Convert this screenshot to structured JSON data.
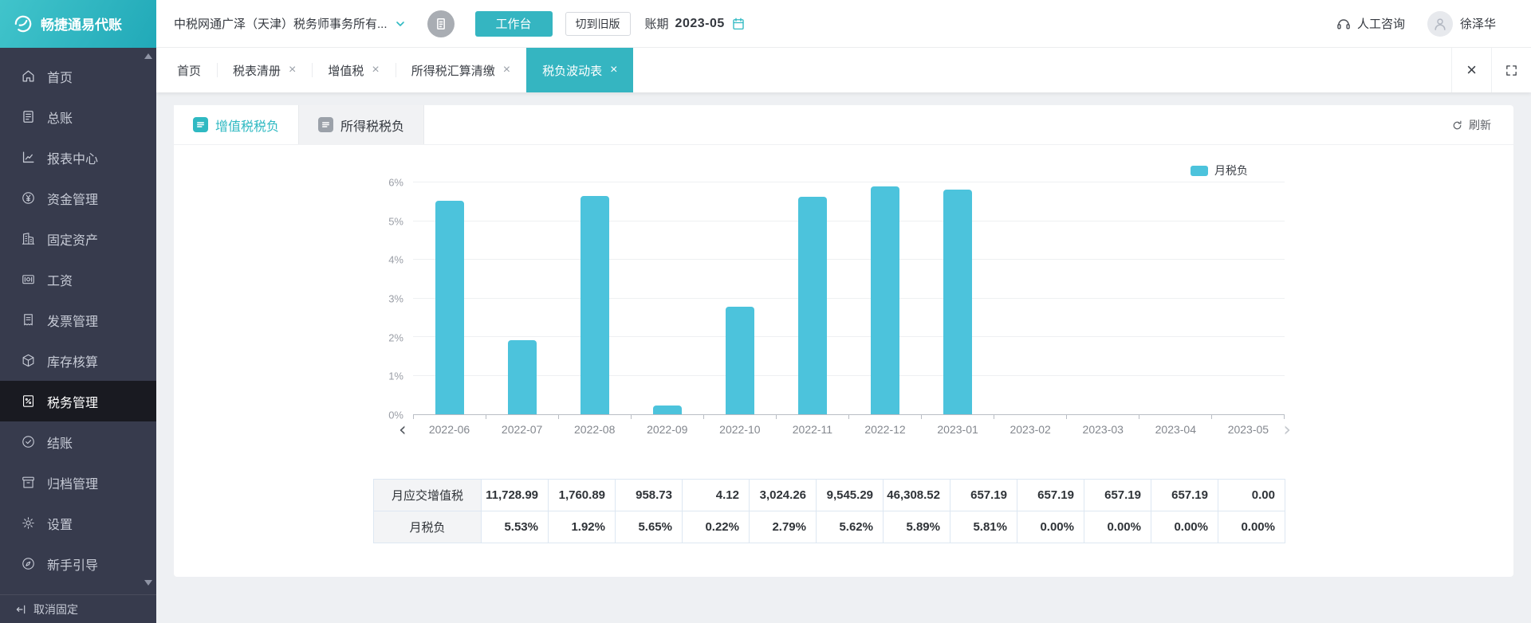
{
  "header": {
    "logo_text": "畅捷通易代账",
    "company_selector": "中税网通广泽（天津）税务师事务所有...",
    "workbench_button": "工作台",
    "switch_old_button": "切到旧版",
    "period_label": "账期",
    "period_value": "2023-05",
    "support_label": "人工咨询",
    "user_name": "徐泽华"
  },
  "sidebar": {
    "items": [
      {
        "id": "home",
        "label": "首页",
        "icon": "home-icon",
        "active": false
      },
      {
        "id": "general-ledger",
        "label": "总账",
        "icon": "ledger-icon",
        "active": false
      },
      {
        "id": "report-center",
        "label": "报表中心",
        "icon": "report-icon",
        "active": false
      },
      {
        "id": "fund-management",
        "label": "资金管理",
        "icon": "funds-icon",
        "active": false
      },
      {
        "id": "fixed-assets",
        "label": "固定资产",
        "icon": "building-icon",
        "active": false
      },
      {
        "id": "payroll",
        "label": "工资",
        "icon": "payroll-icon",
        "active": false
      },
      {
        "id": "invoice-management",
        "label": "发票管理",
        "icon": "invoice-icon",
        "active": false
      },
      {
        "id": "inventory-accounting",
        "label": "库存核算",
        "icon": "inventory-icon",
        "active": false
      },
      {
        "id": "tax-management",
        "label": "税务管理",
        "icon": "tax-icon",
        "active": true
      },
      {
        "id": "closing",
        "label": "结账",
        "icon": "closing-icon",
        "active": false
      },
      {
        "id": "archive-management",
        "label": "归档管理",
        "icon": "archive-icon",
        "active": false
      },
      {
        "id": "settings",
        "label": "设置",
        "icon": "gear-icon",
        "active": false
      },
      {
        "id": "beginner-guide",
        "label": "新手引导",
        "icon": "guide-icon",
        "active": false
      }
    ],
    "unpin_label": "取消固定"
  },
  "tabs": [
    {
      "id": "home",
      "label": "首页",
      "closable": false,
      "active": false
    },
    {
      "id": "tax-form-register",
      "label": "税表清册",
      "closable": true,
      "active": false
    },
    {
      "id": "vat",
      "label": "增值税",
      "closable": true,
      "active": false
    },
    {
      "id": "income-tax-settlement",
      "label": "所得税汇算清缴",
      "closable": true,
      "active": false
    },
    {
      "id": "tax-burden-fluctuation",
      "label": "税负波动表",
      "closable": true,
      "active": true
    }
  ],
  "content": {
    "subtabs": [
      {
        "id": "vat-tax-burden",
        "label": "增值税税负",
        "icon": "form-icon",
        "active": true
      },
      {
        "id": "income-tax-burden",
        "label": "所得税税负",
        "icon": "form-icon",
        "active": false
      }
    ],
    "refresh_label": "刷新",
    "table_rows": [
      {
        "label": "月应交增值税",
        "values": [
          "11,728.99",
          "1,760.89",
          "958.73",
          "4.12",
          "3,024.26",
          "9,545.29",
          "46,308.52",
          "657.19",
          "657.19",
          "657.19",
          "657.19",
          "0.00"
        ]
      },
      {
        "label": "月税负",
        "values": [
          "5.53%",
          "1.92%",
          "5.65%",
          "0.22%",
          "2.79%",
          "5.62%",
          "5.89%",
          "5.81%",
          "0.00%",
          "0.00%",
          "0.00%",
          "0.00%"
        ]
      }
    ]
  },
  "chart_data": {
    "type": "bar",
    "title": "",
    "categories": [
      "2022-06",
      "2022-07",
      "2022-08",
      "2022-09",
      "2022-10",
      "2022-11",
      "2022-12",
      "2023-01",
      "2023-02",
      "2023-03",
      "2023-04",
      "2023-05"
    ],
    "series": [
      {
        "name": "月税负",
        "values": [
          5.53,
          1.92,
          5.65,
          0.22,
          2.79,
          5.62,
          5.89,
          5.81,
          0,
          0,
          0,
          0
        ]
      }
    ],
    "unit": "%",
    "ylim": [
      0,
      6
    ],
    "ytick_step": 1,
    "grid": true,
    "legend_position": "top-right",
    "bar_color": "#4cc3dc"
  },
  "colors": {
    "primary": "#35b5c1",
    "bar": "#4cc3dc",
    "sidebar_bg": "#373b4d",
    "sidebar_active_bg": "#191a21",
    "page_bg": "#eef0f3"
  }
}
